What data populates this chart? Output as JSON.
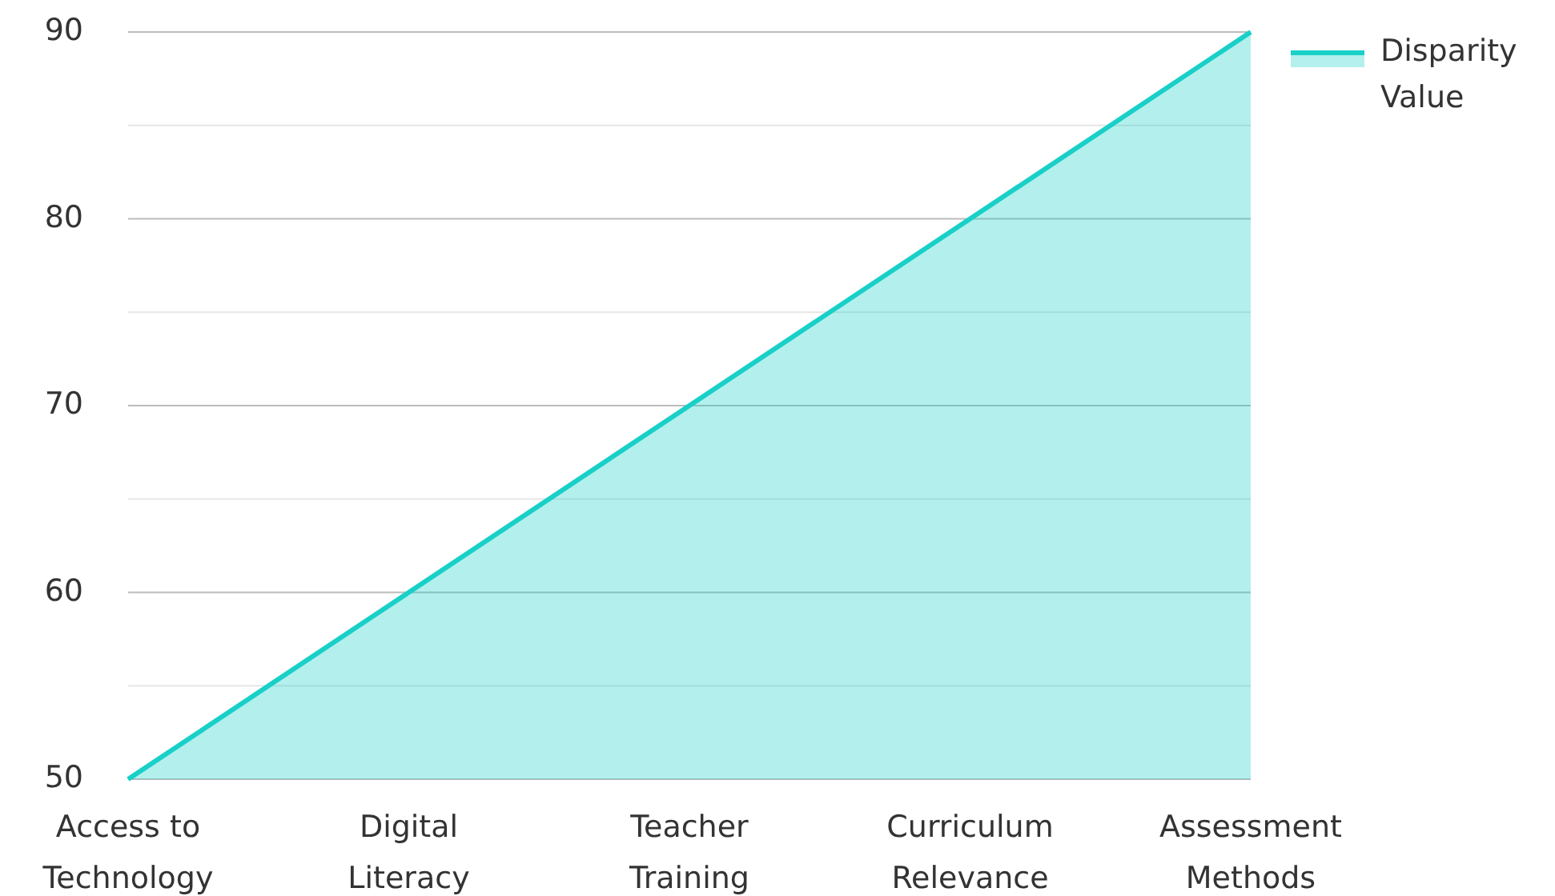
{
  "chart_data": {
    "type": "area",
    "categories": [
      "Access to Technology",
      "Digital Literacy",
      "Teacher Training",
      "Curriculum Relevance",
      "Assessment Methods"
    ],
    "series": [
      {
        "name": "Disparity Value",
        "color": "#19d0c8",
        "values": [
          50,
          60,
          70,
          80,
          90
        ]
      }
    ],
    "ylim": [
      50,
      90
    ],
    "yticks": [
      50,
      {
        "value": 55,
        "label": null
      },
      60,
      {
        "value": 65,
        "label": null
      },
      70,
      {
        "value": 75,
        "label": null
      },
      80,
      {
        "value": 85,
        "label": null
      },
      90
    ],
    "grid": "y",
    "legend": "top right"
  }
}
